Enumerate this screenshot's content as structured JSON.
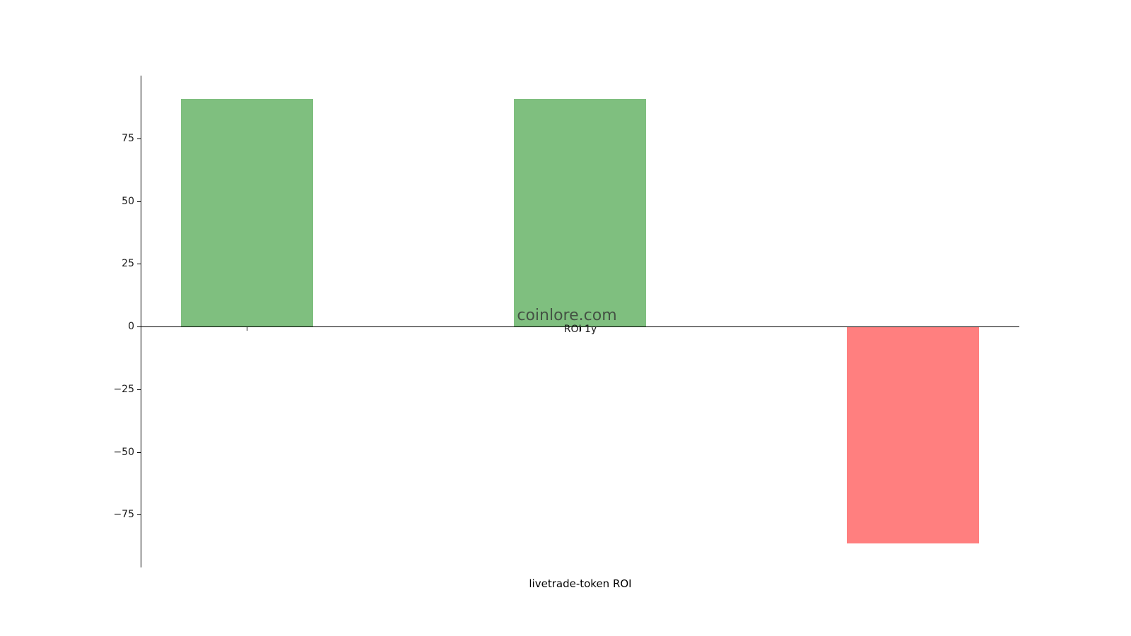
{
  "chart_data": {
    "type": "bar",
    "title": "",
    "xlabel": "livetrade-token ROI",
    "ylabel": "",
    "categories": [
      "",
      "ROI 1y",
      ""
    ],
    "values": [
      90.6,
      90.6,
      -86.4
    ],
    "bar_colors": [
      "#7fbf7f",
      "#7fbf7f",
      "#ff7f7f"
    ],
    "positive_color": "#7fbf7f",
    "negative_color": "#ff7f7f",
    "yticks": [
      {
        "value": 75,
        "label": "75"
      },
      {
        "value": 50,
        "label": "50"
      },
      {
        "value": 25,
        "label": "25"
      },
      {
        "value": 0,
        "label": "0"
      },
      {
        "value": -25,
        "label": "−25"
      },
      {
        "value": -50,
        "label": "−50"
      },
      {
        "value": -75,
        "label": "−75"
      }
    ],
    "ylim": [
      -96,
      100
    ],
    "grid": false,
    "legend_position": "none",
    "axis_color": "#000000"
  },
  "watermark": {
    "text": "coinlore.com",
    "color": "#333333"
  },
  "background_color": "#ffffff"
}
